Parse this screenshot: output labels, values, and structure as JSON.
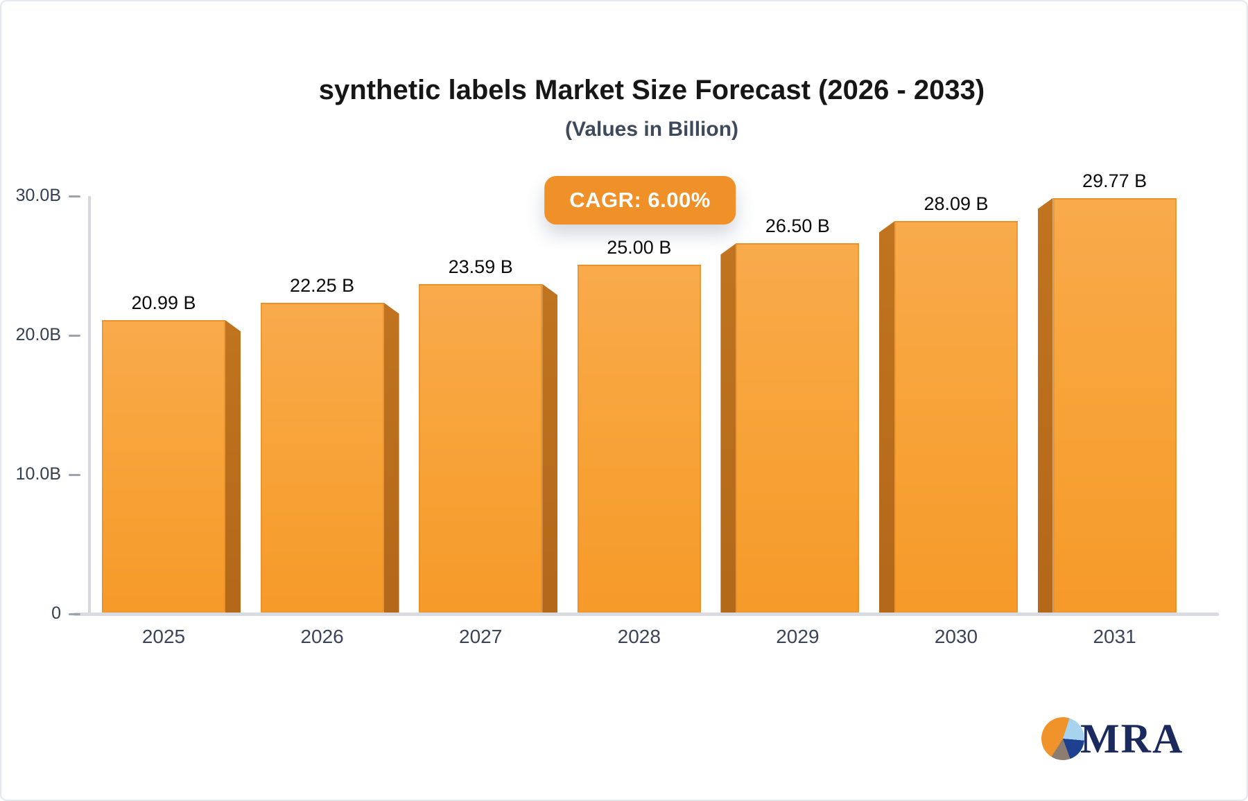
{
  "header": {
    "title": "synthetic labels Market Size Forecast (2026 - 2033)",
    "subtitle": "(Values in Billion)"
  },
  "badge": {
    "label": "CAGR: 6.00%",
    "bg_color": "#EF9029",
    "text_color": "#FFFFFF"
  },
  "logo": {
    "text": "MRA",
    "pie_colors": {
      "orange": "#F1932B",
      "light_blue": "#A7D3EF",
      "navy": "#1E418F",
      "grey": "#8B7D71"
    },
    "text_color": "#1B2A5C"
  },
  "chart_data": {
    "type": "bar",
    "title": "synthetic labels Market Size Forecast (2026 - 2033)",
    "subtitle": "(Values in Billion)",
    "annotation": "CAGR: 6.00%",
    "categories": [
      "2025",
      "2026",
      "2027",
      "2028",
      "2029",
      "2030",
      "2031"
    ],
    "values": [
      20.99,
      22.25,
      23.59,
      25.0,
      26.5,
      28.09,
      29.77
    ],
    "value_labels": [
      "20.99 B",
      "22.25 B",
      "23.59 B",
      "25.00 B",
      "26.50 B",
      "28.09 B",
      "29.77 B"
    ],
    "yticks": [
      {
        "label": "30.0B",
        "value": 30
      },
      {
        "label": "20.0B",
        "value": 20
      },
      {
        "label": "10.0B",
        "value": 10
      },
      {
        "label": "0",
        "value": 0
      }
    ],
    "ylim": [
      0,
      30
    ],
    "xlabel": "",
    "ylabel": "",
    "grid": false,
    "legend": false,
    "bar_color": "#F6A035",
    "bar_side_color": "#B96E1E"
  }
}
